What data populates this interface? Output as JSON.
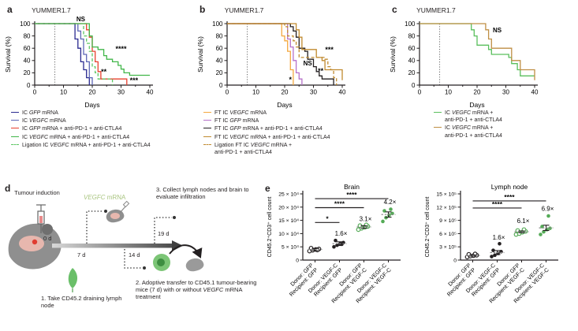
{
  "panels": {
    "a": {
      "letter": "a",
      "title": "YUMMER1.7"
    },
    "b": {
      "letter": "b",
      "title": "YUMMER1.7"
    },
    "c": {
      "letter": "c",
      "title": "YUMMER1.7"
    },
    "d": {
      "letter": "d"
    },
    "e": {
      "letter": "e"
    }
  },
  "chart_data": [
    {
      "id": "a",
      "type": "line",
      "subtype": "kaplan_meier_survival",
      "title": "YUMMER1.7",
      "xlabel": "Days",
      "ylabel": "Survival (%)",
      "xlim": [
        0,
        40
      ],
      "ylim": [
        0,
        100
      ],
      "xticks": [
        0,
        10,
        20,
        30,
        40
      ],
      "xminor": [
        5,
        15,
        25,
        35
      ],
      "yticks": [
        0,
        20,
        40,
        60,
        80,
        100
      ],
      "treatment_day": 7,
      "series": [
        {
          "name": "IC *GFP* mRNA",
          "color": "#2a2a90",
          "dash": false,
          "steps": [
            [
              14,
              75
            ],
            [
              15,
              60
            ],
            [
              16,
              38
            ],
            [
              17,
              25
            ],
            [
              18,
              12
            ],
            [
              19,
              0
            ]
          ]
        },
        {
          "name": "IC *VEGFC* mRNA",
          "color": "#5d66b5",
          "dash": false,
          "steps": [
            [
              15,
              88
            ],
            [
              16,
              75
            ],
            [
              17,
              50
            ],
            [
              18,
              38
            ],
            [
              19,
              12
            ],
            [
              20,
              0
            ]
          ]
        },
        {
          "name": "IC *GFP* mRNA + anti-PD-1 + anti-CTLA4",
          "color": "#e8402f",
          "dash": false,
          "steps": [
            [
              18,
              90
            ],
            [
              19,
              78
            ],
            [
              20,
              55
            ],
            [
              21,
              38
            ],
            [
              22,
              22
            ],
            [
              23,
              10
            ],
            [
              32,
              0
            ]
          ]
        },
        {
          "name": "IC *VEGFC* mRNA + anti-PD-1 + anti-CTLA4",
          "color": "#41b649",
          "dash": false,
          "steps": [
            [
              19,
              80
            ],
            [
              20,
              62
            ],
            [
              22,
              58
            ],
            [
              24,
              48
            ],
            [
              25,
              42
            ],
            [
              27,
              38
            ],
            [
              29,
              32
            ],
            [
              30,
              26
            ],
            [
              31,
              20
            ],
            [
              33,
              16
            ]
          ],
          "end": 40
        },
        {
          "name": "Ligation IC *VEGFC* mRNA + anti-PD-1 + anti-CTLA4",
          "color": "#5cc763",
          "dash": true,
          "steps": [
            [
              17,
              80
            ],
            [
              18,
              68
            ],
            [
              19,
              55
            ],
            [
              20,
              30
            ],
            [
              21,
              20
            ],
            [
              22,
              10
            ],
            [
              27,
              0
            ]
          ]
        }
      ],
      "annotations": [
        {
          "text": "NS",
          "x": 16,
          "y": 104
        },
        {
          "text": "**",
          "x": 24,
          "y": 18
        },
        {
          "text": "***",
          "x": 34.5,
          "y": 4
        },
        {
          "text": "****",
          "x": 30,
          "y": 55
        }
      ]
    },
    {
      "id": "b",
      "type": "line",
      "subtype": "kaplan_meier_survival",
      "title": "YUMMER1.7",
      "xlabel": "Days",
      "ylabel": "Survival (%)",
      "xlim": [
        0,
        40
      ],
      "ylim": [
        0,
        100
      ],
      "xticks": [
        0,
        10,
        20,
        30,
        40
      ],
      "xminor": [
        5,
        15,
        25,
        35
      ],
      "yticks": [
        0,
        20,
        40,
        60,
        80,
        100
      ],
      "treatment_day": 7,
      "series": [
        {
          "name": "FT IC *VEGFC* mRNA",
          "color": "#f4a83f",
          "dash": false,
          "steps": [
            [
              19,
              80
            ],
            [
              20,
              72
            ],
            [
              21,
              55
            ],
            [
              22,
              25
            ],
            [
              23,
              0
            ]
          ]
        },
        {
          "name": "FT IC *GFP* mRNA",
          "color": "#b671c9",
          "dash": false,
          "steps": [
            [
              21,
              75
            ],
            [
              22,
              62
            ],
            [
              23,
              40
            ],
            [
              24,
              20
            ],
            [
              25,
              10
            ],
            [
              26,
              0
            ]
          ]
        },
        {
          "name": "FT IC *GFP* mRNA + anti-PD-1 + anti-CTLA4",
          "color": "#231f20",
          "dash": false,
          "steps": [
            [
              22,
              95
            ],
            [
              23,
              88
            ],
            [
              24,
              78
            ],
            [
              25,
              60
            ],
            [
              27,
              55
            ],
            [
              28,
              42
            ],
            [
              30,
              30
            ],
            [
              31,
              22
            ],
            [
              32,
              15
            ],
            [
              33,
              10
            ],
            [
              37,
              0
            ]
          ]
        },
        {
          "name": "FT IC *VEGFC* mRNA + anti-PD-1 + anti-CTLA4",
          "color": "#c08a2f",
          "dash": false,
          "steps": [
            [
              24,
              90
            ],
            [
              25,
              78
            ],
            [
              26,
              58
            ],
            [
              31,
              45
            ],
            [
              33,
              40
            ],
            [
              34,
              25
            ],
            [
              40,
              8
            ]
          ],
          "end": 40
        },
        {
          "name": "Ligation FT IC *VEGFC* mRNA +\nanti-PD-1 + anti-CTLA4",
          "color": "#c08a2f",
          "dash": true,
          "steps": [
            [
              20,
              95
            ],
            [
              21,
              80
            ],
            [
              23,
              72
            ],
            [
              24,
              62
            ],
            [
              25,
              45
            ],
            [
              34,
              42
            ],
            [
              35,
              30
            ],
            [
              36,
              25
            ],
            [
              37,
              12
            ],
            [
              38,
              0
            ]
          ]
        }
      ],
      "annotations": [
        {
          "text": "*",
          "x": 22,
          "y": 5
        },
        {
          "text": "NS",
          "x": 28,
          "y": 32
        },
        {
          "text": "**",
          "x": 32.5,
          "y": 19
        },
        {
          "text": "***",
          "x": 35.5,
          "y": 54
        }
      ]
    },
    {
      "id": "c",
      "type": "line",
      "subtype": "kaplan_meier_survival",
      "title": "YUMMER1.7",
      "xlabel": "Days",
      "ylabel": "Survival (%)",
      "xlim": [
        0,
        40
      ],
      "ylim": [
        0,
        100
      ],
      "xticks": [
        0,
        10,
        20,
        30,
        40
      ],
      "xminor": [
        5,
        15,
        25,
        35
      ],
      "yticks": [
        0,
        20,
        40,
        60,
        80,
        100
      ],
      "treatment_day": 7,
      "series": [
        {
          "name": "IC *VEGFC* mRNA +\nanti-PD-1 + anti-CTLA4",
          "color": "#5abf5d",
          "dash": false,
          "steps": [
            [
              18,
              90
            ],
            [
              19,
              80
            ],
            [
              20,
              65
            ],
            [
              24,
              58
            ],
            [
              25,
              50
            ],
            [
              31,
              45
            ],
            [
              32,
              35
            ],
            [
              34,
              25
            ],
            [
              35,
              15
            ]
          ],
          "end": 40
        },
        {
          "name": "IC *VEGFC* mRNA +\nanti-PD-1 + anti-CTLA4",
          "color": "#bf8f45",
          "dash": false,
          "steps": [
            [
              23,
              90
            ],
            [
              24,
              75
            ],
            [
              25,
              60
            ],
            [
              32,
              40
            ],
            [
              35,
              25
            ],
            [
              40,
              8
            ]
          ],
          "end": 40
        }
      ],
      "annotations": [
        {
          "text": "NS",
          "x": 27,
          "y": 86
        }
      ]
    },
    {
      "id": "brain",
      "type": "scatter",
      "subtype": "dot_plot",
      "title": "Brain",
      "ylabel": "CD45.2⁺CD3⁺ cell count",
      "ylim": [
        0,
        25
      ],
      "yticks": [
        0,
        5,
        10,
        15,
        20,
        25
      ],
      "ytick_suffix": " × 10⁴",
      "groups": [
        {
          "label": [
            "Donor: GFP",
            "Recipient: GFP"
          ],
          "color": "#231f20",
          "filled": false,
          "points": [
            3.4,
            3.7,
            4.0,
            4.2,
            4.5,
            3.8
          ],
          "mean": 4.0,
          "sem": 0.4
        },
        {
          "label": [
            "Donor: VEGF-C",
            "Recipient: GFP"
          ],
          "color": "#231f20",
          "filled": true,
          "points": [
            5.0,
            5.6,
            6.2,
            6.6,
            7.4,
            6.0
          ],
          "mean": 6.2,
          "sem": 0.7,
          "fold": "1.6×",
          "fold_y": 9.2
        },
        {
          "label": [
            "Donor: GFP",
            "Recipient: VEGF-C"
          ],
          "color": "#55ab57",
          "filled": false,
          "points": [
            11.5,
            12.0,
            12.4,
            12.7,
            13.0,
            13.3
          ],
          "mean": 12.5,
          "sem": 0.5,
          "fold": "3.1×",
          "fold_y": 14.8
        },
        {
          "label": [
            "Donor: VEGF-C",
            "Recipient: VEGF-C"
          ],
          "color": "#55ab57",
          "filled": true,
          "points": [
            14.6,
            16.0,
            17.0,
            17.6,
            18.6,
            19.2
          ],
          "mean": 17.2,
          "sem": 1.0,
          "fold": "4.2×",
          "fold_y": 21.2
        }
      ],
      "sig": [
        {
          "from": 0,
          "to": 1,
          "y": 14.2,
          "text": "*"
        },
        {
          "from": 0,
          "to": 2,
          "y": 19.8,
          "text": "****"
        },
        {
          "from": 0,
          "to": 3,
          "y": 23.2,
          "text": "****"
        }
      ]
    },
    {
      "id": "lymph",
      "type": "scatter",
      "subtype": "dot_plot",
      "title": "Lymph node",
      "ylabel": "CD45.2⁺CD3⁺ cell count",
      "ylim": [
        0,
        15
      ],
      "yticks": [
        0,
        3,
        6,
        9,
        12,
        15
      ],
      "ytick_suffix": " × 10⁵",
      "groups": [
        {
          "label": [
            "Donor: GFP",
            "Recipient: GFP"
          ],
          "color": "#231f20",
          "filled": false,
          "points": [
            0.7,
            0.9,
            1.0,
            1.1,
            1.3,
            1.4
          ],
          "mean": 1.05,
          "sem": 0.15
        },
        {
          "label": [
            "Donor: VEGF-C",
            "Recipient: GFP"
          ],
          "color": "#231f20",
          "filled": true,
          "points": [
            0.8,
            1.1,
            1.5,
            1.9,
            2.2,
            3.7
          ],
          "mean": 1.7,
          "sem": 0.45,
          "fold": "1.6×",
          "fold_y": 4.6
        },
        {
          "label": [
            "Donor: GFP",
            "Recipient: VEGF-C"
          ],
          "color": "#55ab57",
          "filled": false,
          "points": [
            5.8,
            6.0,
            6.3,
            6.5,
            6.7,
            6.9
          ],
          "mean": 6.4,
          "sem": 0.2,
          "fold": "6.1×",
          "fold_y": 8.4
        },
        {
          "label": [
            "Donor: VEGF-C",
            "Recipient: VEGF-C"
          ],
          "color": "#55ab57",
          "filled": true,
          "points": [
            5.8,
            6.4,
            6.9,
            7.2,
            7.6,
            10.0
          ],
          "mean": 7.3,
          "sem": 0.6,
          "fold": "6.9×",
          "fold_y": 11.2
        }
      ],
      "sig": [
        {
          "from": 0,
          "to": 2,
          "y": 11.8,
          "text": "****"
        },
        {
          "from": 0,
          "to": 3,
          "y": 13.4,
          "text": "****"
        }
      ]
    }
  ],
  "diagram": {
    "tumour_induction": "Tumour induction",
    "vegfc_mrna": "*VEGFC* mRNA",
    "timeline": [
      "0 d",
      "7 d",
      "14 d",
      "19 d"
    ],
    "step1": "1. Take CD45.2 draining lymph node",
    "step2": "2. Adoptive transfer to CD45.1 tumour-bearing mice (7 d) with or without *VEGFC* mRNA treatment",
    "step3": "3. Collect lymph nodes and brain to evaluate infiltration"
  }
}
